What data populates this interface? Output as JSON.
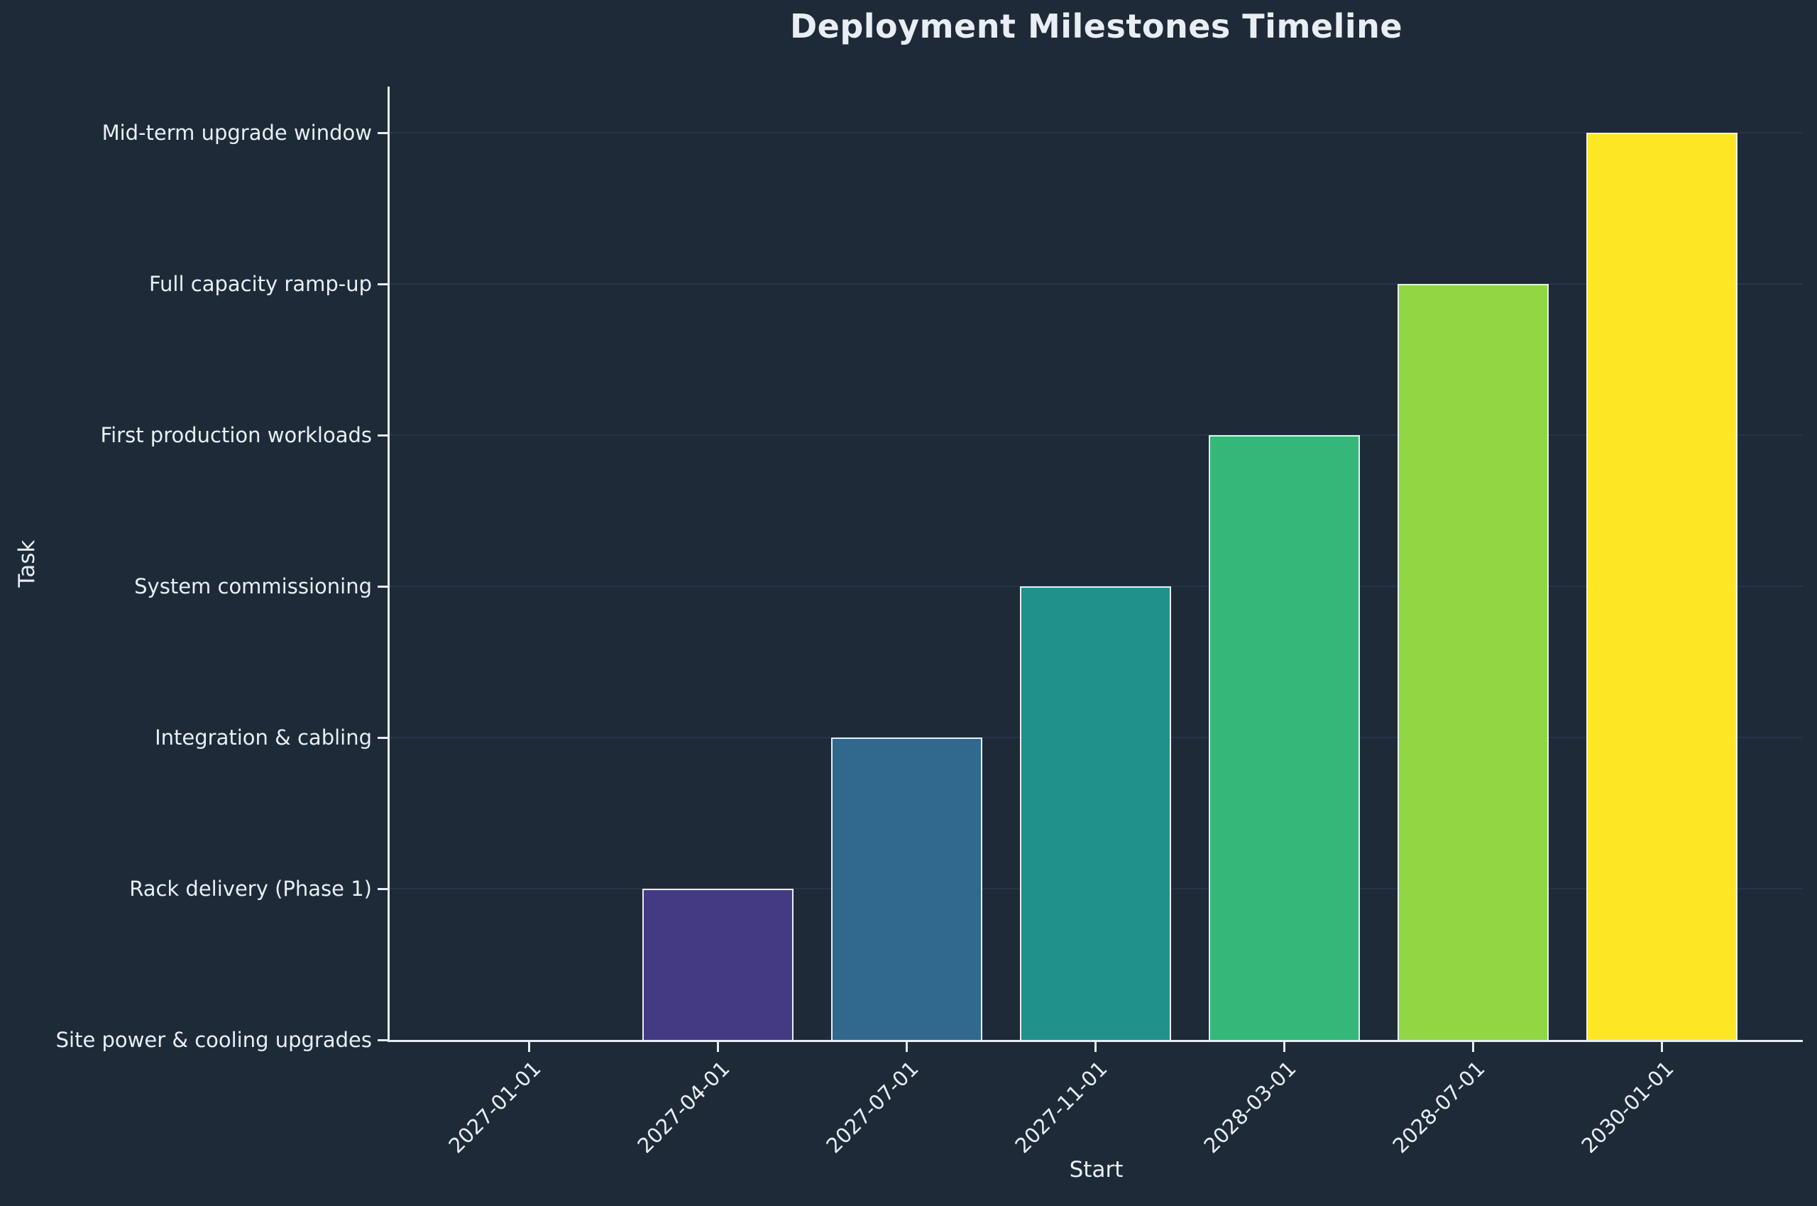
{
  "chart_data": {
    "type": "bar",
    "title": "Deployment Milestones Timeline",
    "xlabel": "Start",
    "ylabel": "Task",
    "categories": [
      "2027-01-01",
      "2027-04-01",
      "2027-07-01",
      "2027-11-01",
      "2028-03-01",
      "2028-07-01",
      "2030-01-01"
    ],
    "values": [
      0,
      1,
      2,
      3,
      4,
      5,
      6
    ],
    "y_tick_labels": [
      "Site power & cooling upgrades",
      "Rack delivery (Phase 1)",
      "Integration & cabling",
      "System commissioning",
      "First production workloads",
      "Full capacity ramp-up",
      "Mid-term upgrade window"
    ],
    "bar_colors": [
      "#440154",
      "#443983",
      "#31688e",
      "#21918c",
      "#35b779",
      "#90d743",
      "#fde725"
    ],
    "ylim": [
      0,
      6.3
    ],
    "grid": "horizontal",
    "legend_position": "none",
    "x_tick_rotation": 45,
    "orientation": "vertical"
  },
  "colors": {
    "background": "#1e2a38",
    "text": "#e9eef4",
    "axis": "#e7edf3",
    "gridline": "#28344a",
    "bar_edge": "#e9eef4"
  }
}
